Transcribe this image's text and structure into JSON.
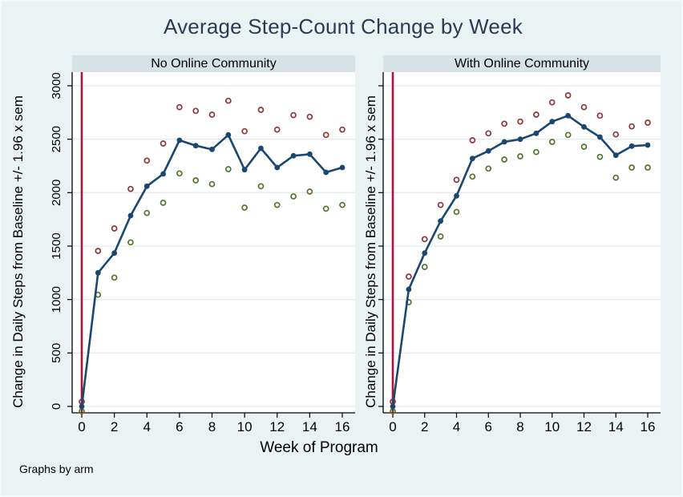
{
  "window": {
    "background": "#eaf2f3",
    "border": "#f4f9fa"
  },
  "chart_data": {
    "type": "line",
    "title": "Average Step-Count Change by Week",
    "xlabel": "Week of Program",
    "ylabel": "Change in Daily Steps from Baseline +/- 1.96 x sem",
    "note": "Graphs by arm",
    "x": [
      0,
      1,
      2,
      3,
      4,
      5,
      6,
      7,
      8,
      9,
      10,
      11,
      12,
      13,
      14,
      15,
      16
    ],
    "x_ticks": [
      0,
      2,
      4,
      6,
      8,
      10,
      12,
      14,
      16
    ],
    "y_ticks": [
      0,
      500,
      1000,
      1500,
      2000,
      2500,
      3000
    ],
    "xlim": [
      -0.6,
      16.8
    ],
    "ylim": [
      -75,
      3125
    ],
    "grid": "horizontal",
    "legend": "none",
    "vline_x": 0,
    "colors": {
      "background": "#eaf2f3",
      "plot_bg": "#ffffff",
      "panel_header_bg": "#d6e2e6",
      "grid": "#e2eaec",
      "axis": "#000000",
      "title": "#2a3b54",
      "mean_line": "#1a476f",
      "upper_ci": "#90353b",
      "lower_ci": "#55752f",
      "zero_week_line": "#aa143c"
    },
    "panels": [
      {
        "label": "No Online Community",
        "series": [
          {
            "name": "mean",
            "values": [
              0,
              1250,
              1435,
              1785,
              2060,
              2175,
              2490,
              2440,
              2405,
              2540,
              2215,
              2415,
              2235,
              2345,
              2360,
              2190,
              2235
            ]
          },
          {
            "name": "upper_ci",
            "values": [
              45,
              1455,
              1665,
              2035,
              2300,
              2460,
              2800,
              2765,
              2730,
              2860,
              2575,
              2775,
              2590,
              2725,
              2710,
              2540,
              2590
            ]
          },
          {
            "name": "lower_ci",
            "values": [
              -45,
              1045,
              1205,
              1535,
              1810,
              1905,
              2180,
              2115,
              2080,
              2220,
              1860,
              2060,
              1885,
              1965,
              2010,
              1850,
              1885
            ]
          }
        ]
      },
      {
        "label": "With Online Community",
        "series": [
          {
            "name": "mean",
            "values": [
              0,
              1095,
              1435,
              1735,
              1970,
              2320,
              2390,
              2475,
              2500,
              2555,
              2665,
              2720,
              2615,
              2520,
              2350,
              2435,
              2445
            ]
          },
          {
            "name": "upper_ci",
            "values": [
              45,
              1215,
              1565,
              1885,
              2120,
              2490,
              2555,
              2645,
              2665,
              2730,
              2845,
              2910,
              2800,
              2720,
              2545,
              2620,
              2655
            ]
          },
          {
            "name": "lower_ci",
            "values": [
              -45,
              975,
              1305,
              1590,
              1820,
              2150,
              2225,
              2310,
              2340,
              2380,
              2475,
              2540,
              2430,
              2335,
              2140,
              2235,
              2235
            ]
          }
        ]
      }
    ]
  }
}
